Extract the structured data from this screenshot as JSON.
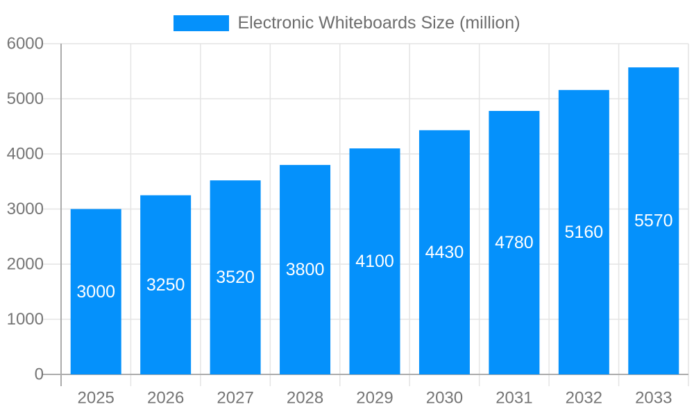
{
  "chart_data": {
    "type": "bar",
    "title": "Electronic Whiteboards Size (million)",
    "legend": [
      "Electronic Whiteboards Size (million)"
    ],
    "legend_position": "top",
    "categories": [
      "2025",
      "2026",
      "2027",
      "2028",
      "2029",
      "2030",
      "2031",
      "2032",
      "2033"
    ],
    "series": [
      {
        "name": "Electronic Whiteboards Size (million)",
        "values": [
          3000,
          3250,
          3520,
          3800,
          4100,
          4430,
          4780,
          5160,
          5570
        ]
      }
    ],
    "value_labels": [
      "3000",
      "3250",
      "3520",
      "3800",
      "4100",
      "4430",
      "4780",
      "5160",
      "5570"
    ],
    "xlabel": "",
    "ylabel": "",
    "ylim": [
      0,
      6000
    ],
    "ytick_step": 1000,
    "ytick_labels": [
      "0",
      "1000",
      "2000",
      "3000",
      "4000",
      "5000",
      "6000"
    ],
    "grid": true
  },
  "colors": {
    "bar": "#0591FB",
    "grid": "#e4e4e4",
    "axis": "#ababab",
    "tick_label": "#757575",
    "value_label": "#ffffff",
    "legend_text": "#6d6d6d",
    "background": "#ffffff"
  }
}
